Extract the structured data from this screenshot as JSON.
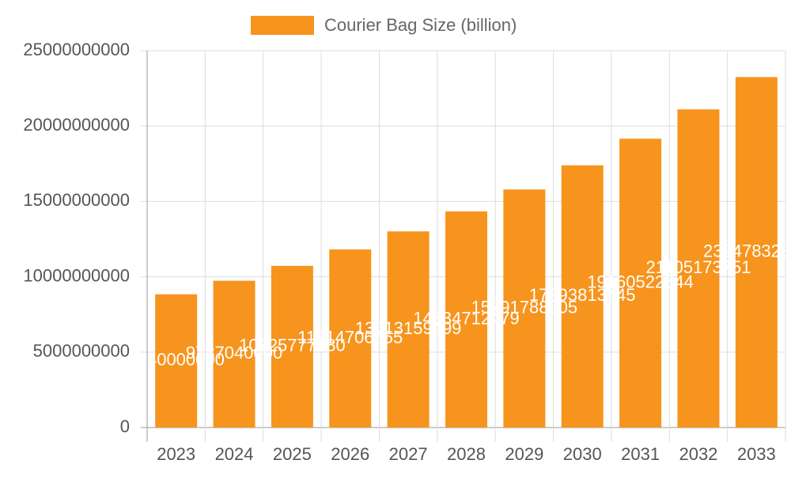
{
  "chart_data": {
    "type": "bar",
    "categories": [
      "2023",
      "2024",
      "2025",
      "2026",
      "2027",
      "2028",
      "2029",
      "2030",
      "2031",
      "2032",
      "2033"
    ],
    "series": [
      {
        "name": "Courier Bag Size (billion)",
        "color": "#f7941d",
        "values": [
          8840000000,
          9737040000,
          10725777180,
          11814706655,
          13013159499,
          14334712479,
          15791788505,
          17393813445,
          19160522544,
          21105173751,
          23247832848
        ]
      }
    ],
    "ylim": [
      0,
      25000000000
    ],
    "yticks": [
      0,
      5000000000,
      10000000000,
      15000000000,
      20000000000,
      25000000000
    ],
    "grid": true,
    "legend": "top",
    "data_labels": true
  }
}
